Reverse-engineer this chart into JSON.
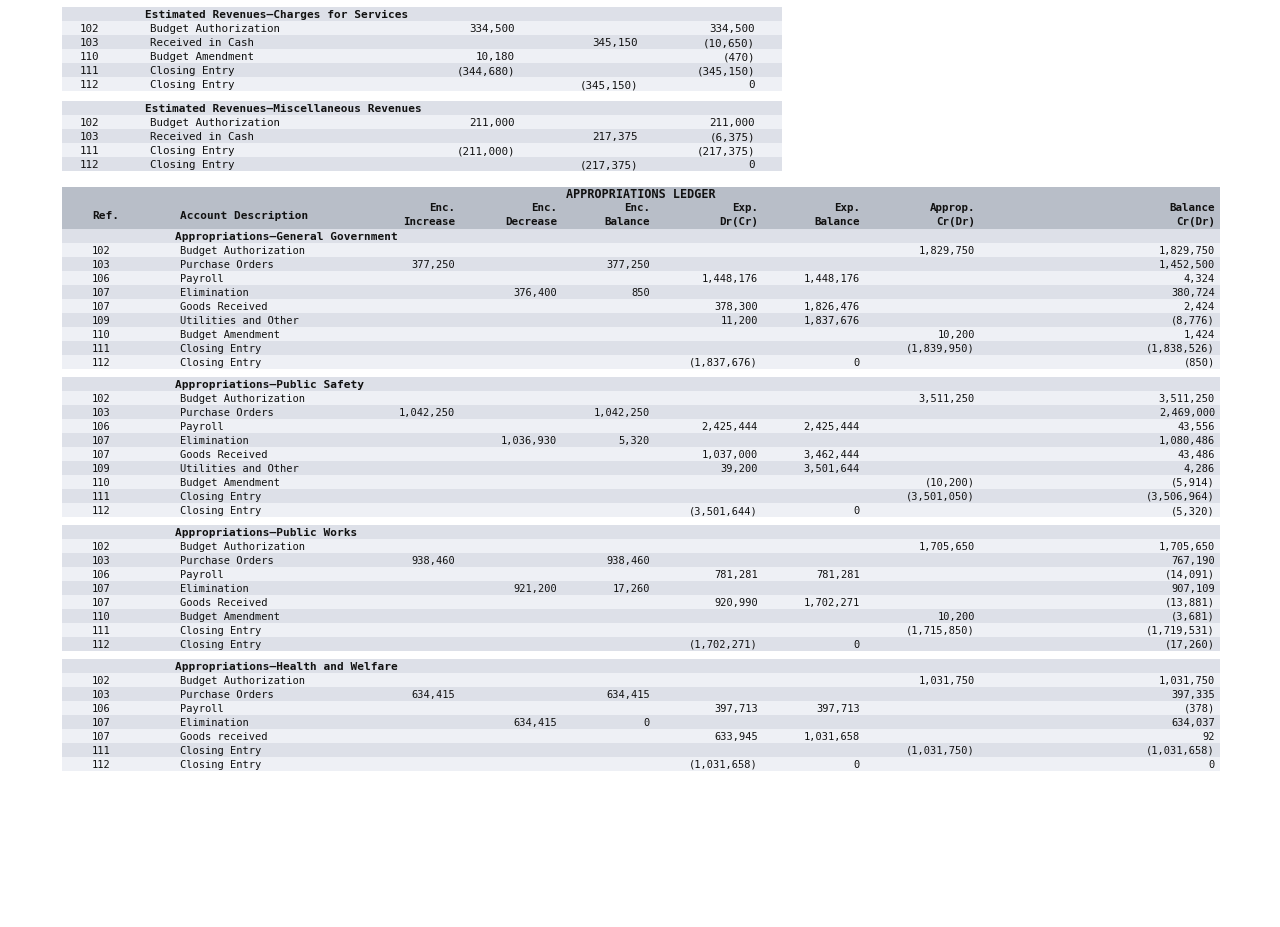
{
  "bg": "#ffffff",
  "row_light": "#eef0f5",
  "row_dark": "#dde0e8",
  "header_bg": "#b8bec8",
  "top_section": {
    "title1": "Estimated Revenues–Charges for Services",
    "rows1": [
      {
        "ref": "102",
        "desc": "Budget Authorization",
        "c3": "334,500",
        "c4": "",
        "c5": "334,500"
      },
      {
        "ref": "103",
        "desc": "Received in Cash",
        "c3": "",
        "c4": "345,150",
        "c5": "(10,650)"
      },
      {
        "ref": "110",
        "desc": "Budget Amendment",
        "c3": "10,180",
        "c4": "",
        "c5": "(470)"
      },
      {
        "ref": "111",
        "desc": "Closing Entry",
        "c3": "(344,680)",
        "c4": "",
        "c5": "(345,150)"
      },
      {
        "ref": "112",
        "desc": "Closing Entry",
        "c3": "",
        "c4": "(345,150)",
        "c5": "0"
      }
    ],
    "title2": "Estimated Revenues–Miscellaneous Revenues",
    "rows2": [
      {
        "ref": "102",
        "desc": "Budget Authorization",
        "c3": "211,000",
        "c4": "",
        "c5": "211,000"
      },
      {
        "ref": "103",
        "desc": "Received in Cash",
        "c3": "",
        "c4": "217,375",
        "c5": "(6,375)"
      },
      {
        "ref": "111",
        "desc": "Closing Entry",
        "c3": "(211,000)",
        "c4": "",
        "c5": "(217,375)"
      },
      {
        "ref": "112",
        "desc": "Closing Entry",
        "c3": "",
        "c4": "(217,375)",
        "c5": "0"
      }
    ]
  },
  "approp_header": "APPROPRIATIONS LEDGER",
  "approp_sections": [
    {
      "title": "Appropriations–General Government",
      "rows": [
        {
          "ref": "102",
          "desc": "Budget Authorization",
          "enc_inc": "",
          "enc_dec": "",
          "enc_bal": "",
          "exp_dr": "",
          "exp_bal": "",
          "approp": "1,829,750",
          "balance": "1,829,750"
        },
        {
          "ref": "103",
          "desc": "Purchase Orders",
          "enc_inc": "377,250",
          "enc_dec": "",
          "enc_bal": "377,250",
          "exp_dr": "",
          "exp_bal": "",
          "approp": "",
          "balance": "1,452,500"
        },
        {
          "ref": "106",
          "desc": "Payroll",
          "enc_inc": "",
          "enc_dec": "",
          "enc_bal": "",
          "exp_dr": "1,448,176",
          "exp_bal": "1,448,176",
          "approp": "",
          "balance": "4,324"
        },
        {
          "ref": "107",
          "desc": "Elimination",
          "enc_inc": "",
          "enc_dec": "376,400",
          "enc_bal": "850",
          "exp_dr": "",
          "exp_bal": "",
          "approp": "",
          "balance": "380,724"
        },
        {
          "ref": "107",
          "desc": "Goods Received",
          "enc_inc": "",
          "enc_dec": "",
          "enc_bal": "",
          "exp_dr": "378,300",
          "exp_bal": "1,826,476",
          "approp": "",
          "balance": "2,424"
        },
        {
          "ref": "109",
          "desc": "Utilities and Other",
          "enc_inc": "",
          "enc_dec": "",
          "enc_bal": "",
          "exp_dr": "11,200",
          "exp_bal": "1,837,676",
          "approp": "",
          "balance": "(8,776)"
        },
        {
          "ref": "110",
          "desc": "Budget Amendment",
          "enc_inc": "",
          "enc_dec": "",
          "enc_bal": "",
          "exp_dr": "",
          "exp_bal": "",
          "approp": "10,200",
          "balance": "1,424"
        },
        {
          "ref": "111",
          "desc": "Closing Entry",
          "enc_inc": "",
          "enc_dec": "",
          "enc_bal": "",
          "exp_dr": "",
          "exp_bal": "",
          "approp": "(1,839,950)",
          "balance": "(1,838,526)"
        },
        {
          "ref": "112",
          "desc": "Closing Entry",
          "enc_inc": "",
          "enc_dec": "",
          "enc_bal": "",
          "exp_dr": "(1,837,676)",
          "exp_bal": "0",
          "approp": "",
          "balance": "(850)"
        }
      ]
    },
    {
      "title": "Appropriations–Public Safety",
      "rows": [
        {
          "ref": "102",
          "desc": "Budget Authorization",
          "enc_inc": "",
          "enc_dec": "",
          "enc_bal": "",
          "exp_dr": "",
          "exp_bal": "",
          "approp": "3,511,250",
          "balance": "3,511,250"
        },
        {
          "ref": "103",
          "desc": "Purchase Orders",
          "enc_inc": "1,042,250",
          "enc_dec": "",
          "enc_bal": "1,042,250",
          "exp_dr": "",
          "exp_bal": "",
          "approp": "",
          "balance": "2,469,000"
        },
        {
          "ref": "106",
          "desc": "Payroll",
          "enc_inc": "",
          "enc_dec": "",
          "enc_bal": "",
          "exp_dr": "2,425,444",
          "exp_bal": "2,425,444",
          "approp": "",
          "balance": "43,556"
        },
        {
          "ref": "107",
          "desc": "Elimination",
          "enc_inc": "",
          "enc_dec": "1,036,930",
          "enc_bal": "5,320",
          "exp_dr": "",
          "exp_bal": "",
          "approp": "",
          "balance": "1,080,486"
        },
        {
          "ref": "107",
          "desc": "Goods Received",
          "enc_inc": "",
          "enc_dec": "",
          "enc_bal": "",
          "exp_dr": "1,037,000",
          "exp_bal": "3,462,444",
          "approp": "",
          "balance": "43,486"
        },
        {
          "ref": "109",
          "desc": "Utilities and Other",
          "enc_inc": "",
          "enc_dec": "",
          "enc_bal": "",
          "exp_dr": "39,200",
          "exp_bal": "3,501,644",
          "approp": "",
          "balance": "4,286"
        },
        {
          "ref": "110",
          "desc": "Budget Amendment",
          "enc_inc": "",
          "enc_dec": "",
          "enc_bal": "",
          "exp_dr": "",
          "exp_bal": "",
          "approp": "(10,200)",
          "balance": "(5,914)"
        },
        {
          "ref": "111",
          "desc": "Closing Entry",
          "enc_inc": "",
          "enc_dec": "",
          "enc_bal": "",
          "exp_dr": "",
          "exp_bal": "",
          "approp": "(3,501,050)",
          "balance": "(3,506,964)"
        },
        {
          "ref": "112",
          "desc": "Closing Entry",
          "enc_inc": "",
          "enc_dec": "",
          "enc_bal": "",
          "exp_dr": "(3,501,644)",
          "exp_bal": "0",
          "approp": "",
          "balance": "(5,320)"
        }
      ]
    },
    {
      "title": "Appropriations–Public Works",
      "rows": [
        {
          "ref": "102",
          "desc": "Budget Authorization",
          "enc_inc": "",
          "enc_dec": "",
          "enc_bal": "",
          "exp_dr": "",
          "exp_bal": "",
          "approp": "1,705,650",
          "balance": "1,705,650"
        },
        {
          "ref": "103",
          "desc": "Purchase Orders",
          "enc_inc": "938,460",
          "enc_dec": "",
          "enc_bal": "938,460",
          "exp_dr": "",
          "exp_bal": "",
          "approp": "",
          "balance": "767,190"
        },
        {
          "ref": "106",
          "desc": "Payroll",
          "enc_inc": "",
          "enc_dec": "",
          "enc_bal": "",
          "exp_dr": "781,281",
          "exp_bal": "781,281",
          "approp": "",
          "balance": "(14,091)"
        },
        {
          "ref": "107",
          "desc": "Elimination",
          "enc_inc": "",
          "enc_dec": "921,200",
          "enc_bal": "17,260",
          "exp_dr": "",
          "exp_bal": "",
          "approp": "",
          "balance": "907,109"
        },
        {
          "ref": "107",
          "desc": "Goods Received",
          "enc_inc": "",
          "enc_dec": "",
          "enc_bal": "",
          "exp_dr": "920,990",
          "exp_bal": "1,702,271",
          "approp": "",
          "balance": "(13,881)"
        },
        {
          "ref": "110",
          "desc": "Budget Amendment",
          "enc_inc": "",
          "enc_dec": "",
          "enc_bal": "",
          "exp_dr": "",
          "exp_bal": "",
          "approp": "10,200",
          "balance": "(3,681)"
        },
        {
          "ref": "111",
          "desc": "Closing Entry",
          "enc_inc": "",
          "enc_dec": "",
          "enc_bal": "",
          "exp_dr": "",
          "exp_bal": "",
          "approp": "(1,715,850)",
          "balance": "(1,719,531)"
        },
        {
          "ref": "112",
          "desc": "Closing Entry",
          "enc_inc": "",
          "enc_dec": "",
          "enc_bal": "",
          "exp_dr": "(1,702,271)",
          "exp_bal": "0",
          "approp": "",
          "balance": "(17,260)"
        }
      ]
    },
    {
      "title": "Appropriations–Health and Welfare",
      "rows": [
        {
          "ref": "102",
          "desc": "Budget Authorization",
          "enc_inc": "",
          "enc_dec": "",
          "enc_bal": "",
          "exp_dr": "",
          "exp_bal": "",
          "approp": "1,031,750",
          "balance": "1,031,750"
        },
        {
          "ref": "103",
          "desc": "Purchase Orders",
          "enc_inc": "634,415",
          "enc_dec": "",
          "enc_bal": "634,415",
          "exp_dr": "",
          "exp_bal": "",
          "approp": "",
          "balance": "397,335"
        },
        {
          "ref": "106",
          "desc": "Payroll",
          "enc_inc": "",
          "enc_dec": "",
          "enc_bal": "",
          "exp_dr": "397,713",
          "exp_bal": "397,713",
          "approp": "",
          "balance": "(378)"
        },
        {
          "ref": "107",
          "desc": "Elimination",
          "enc_inc": "",
          "enc_dec": "634,415",
          "enc_bal": "0",
          "exp_dr": "",
          "exp_bal": "",
          "approp": "",
          "balance": "634,037"
        },
        {
          "ref": "107",
          "desc": "Goods received",
          "enc_inc": "",
          "enc_dec": "",
          "enc_bal": "",
          "exp_dr": "633,945",
          "exp_bal": "1,031,658",
          "approp": "",
          "balance": "92"
        },
        {
          "ref": "111",
          "desc": "Closing Entry",
          "enc_inc": "",
          "enc_dec": "",
          "enc_bal": "",
          "exp_dr": "",
          "exp_bal": "",
          "approp": "(1,031,750)",
          "balance": "(1,031,658)"
        },
        {
          "ref": "112",
          "desc": "Closing Entry",
          "enc_inc": "",
          "enc_dec": "",
          "enc_bal": "",
          "exp_dr": "(1,031,658)",
          "exp_bal": "0",
          "approp": "",
          "balance": "0"
        }
      ]
    }
  ]
}
